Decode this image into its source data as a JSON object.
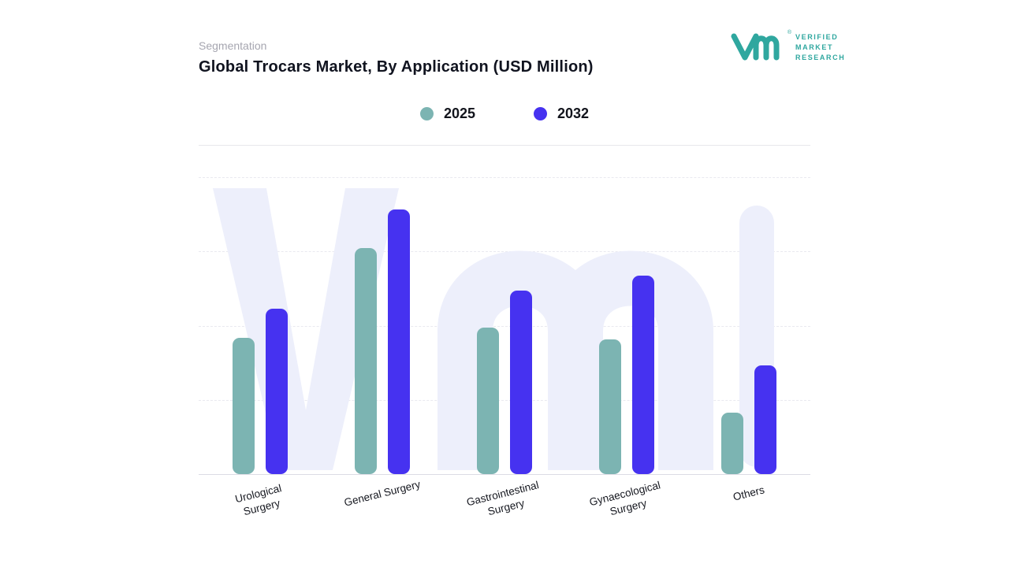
{
  "header": {
    "eyebrow": "Segmentation",
    "title": "Global Trocars Market, By Application (USD Million)"
  },
  "logo": {
    "glyph": "vmr-monogram",
    "lines": [
      "VERIFIED",
      "MARKET",
      "RESEARCH"
    ],
    "registered_mark": "®",
    "color": "#2fa79f"
  },
  "legend": [
    {
      "label": "2025",
      "color": "#7cb4b2"
    },
    {
      "label": "2032",
      "color": "#4632f0"
    }
  ],
  "chart_data": {
    "type": "bar",
    "title": "Global Trocars Market, By Application (USD Million)",
    "units": "USD Million",
    "categories": [
      "Urological Surgery",
      "General Surgery",
      "Gastrointestinal Surgery",
      "Gynaecological Surgery",
      "Others"
    ],
    "category_lines": [
      [
        "Urological",
        "Surgery"
      ],
      [
        "General Surgery"
      ],
      [
        "Gastrointestinal",
        "Surgery"
      ],
      [
        "Gynaecological",
        "Surgery"
      ],
      [
        "Others"
      ]
    ],
    "series": [
      {
        "name": "2025",
        "color": "#7cb4b2",
        "values": [
          174,
          289,
          187,
          172,
          79
        ]
      },
      {
        "name": "2032",
        "color": "#4632f0",
        "values": [
          212,
          339,
          235,
          254,
          139
        ]
      }
    ],
    "ylim": [
      0,
      380
    ],
    "axis_values_shown": false,
    "grid": "horizontal-dashed",
    "legend_position": "top-center",
    "xlabel": "",
    "ylabel": ""
  }
}
